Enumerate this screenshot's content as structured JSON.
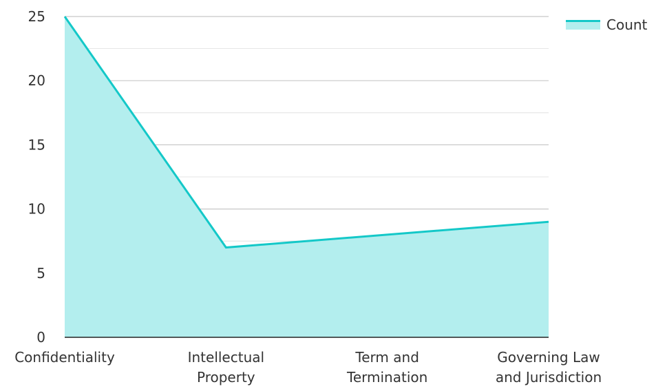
{
  "chart_data": {
    "type": "area",
    "categories": [
      [
        "Confidentiality"
      ],
      [
        "Intellectual",
        "Property"
      ],
      [
        "Term and",
        "Termination"
      ],
      [
        "Governing Law",
        "and Jurisdiction"
      ]
    ],
    "series": [
      {
        "name": "Count",
        "values": [
          25,
          7,
          8,
          9
        ]
      }
    ],
    "ylim": [
      0,
      25
    ],
    "yticks": [
      0,
      5,
      10,
      15,
      20,
      25
    ],
    "grid": true,
    "legend_position": "top-right",
    "line_color": "#14C8C8",
    "fill_color": "#B3EEEE",
    "grid_color": "#c8c8c8",
    "axis_color": "#222222",
    "text_color": "#333333"
  }
}
